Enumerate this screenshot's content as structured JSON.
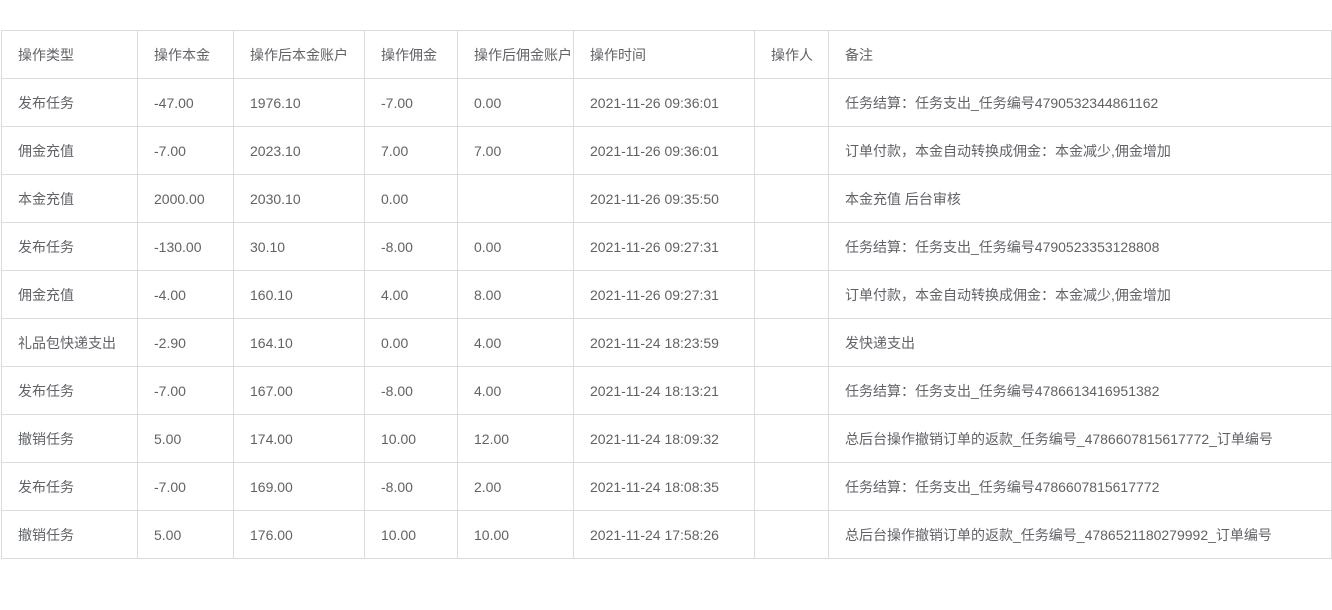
{
  "colors": {
    "background": "#ffffff",
    "text": "#606266",
    "border": "#dcdcdc"
  },
  "table": {
    "columns": [
      "操作类型",
      "操作本金",
      "操作后本金账户",
      "操作佣金",
      "操作后佣金账户",
      "操作时间",
      "操作人",
      "备注"
    ],
    "col_keys": [
      "op-type",
      "op-principal",
      "principal-after",
      "op-commission",
      "commission-after",
      "op-time",
      "operator",
      "remark"
    ],
    "rows": [
      [
        "发布任务",
        "-47.00",
        "1976.10",
        "-7.00",
        "0.00",
        "2021-11-26 09:36:01",
        "",
        "任务结算：任务支出_任务编号4790532344861162"
      ],
      [
        "佣金充值",
        "-7.00",
        "2023.10",
        "7.00",
        "7.00",
        "2021-11-26 09:36:01",
        "",
        "订单付款，本金自动转换成佣金：本金减少,佣金增加"
      ],
      [
        "本金充值",
        "2000.00",
        "2030.10",
        "0.00",
        "",
        "2021-11-26 09:35:50",
        "",
        "本金充值 后台审核"
      ],
      [
        "发布任务",
        "-130.00",
        "30.10",
        "-8.00",
        "0.00",
        "2021-11-26 09:27:31",
        "",
        "任务结算：任务支出_任务编号4790523353128808"
      ],
      [
        "佣金充值",
        "-4.00",
        "160.10",
        "4.00",
        "8.00",
        "2021-11-26 09:27:31",
        "",
        "订单付款，本金自动转换成佣金：本金减少,佣金增加"
      ],
      [
        "礼品包快递支出",
        "-2.90",
        "164.10",
        "0.00",
        "4.00",
        "2021-11-24 18:23:59",
        "",
        "发快递支出"
      ],
      [
        "发布任务",
        "-7.00",
        "167.00",
        "-8.00",
        "4.00",
        "2021-11-24 18:13:21",
        "",
        "任务结算：任务支出_任务编号4786613416951382"
      ],
      [
        "撤销任务",
        "5.00",
        "174.00",
        "10.00",
        "12.00",
        "2021-11-24 18:09:32",
        "",
        "总后台操作撤销订单的返款_任务编号_4786607815617772_订单编号"
      ],
      [
        "发布任务",
        "-7.00",
        "169.00",
        "-8.00",
        "2.00",
        "2021-11-24 18:08:35",
        "",
        "任务结算：任务支出_任务编号4786607815617772"
      ],
      [
        "撤销任务",
        "5.00",
        "176.00",
        "10.00",
        "10.00",
        "2021-11-24 17:58:26",
        "",
        "总后台操作撤销订单的返款_任务编号_4786521180279992_订单编号"
      ]
    ]
  }
}
